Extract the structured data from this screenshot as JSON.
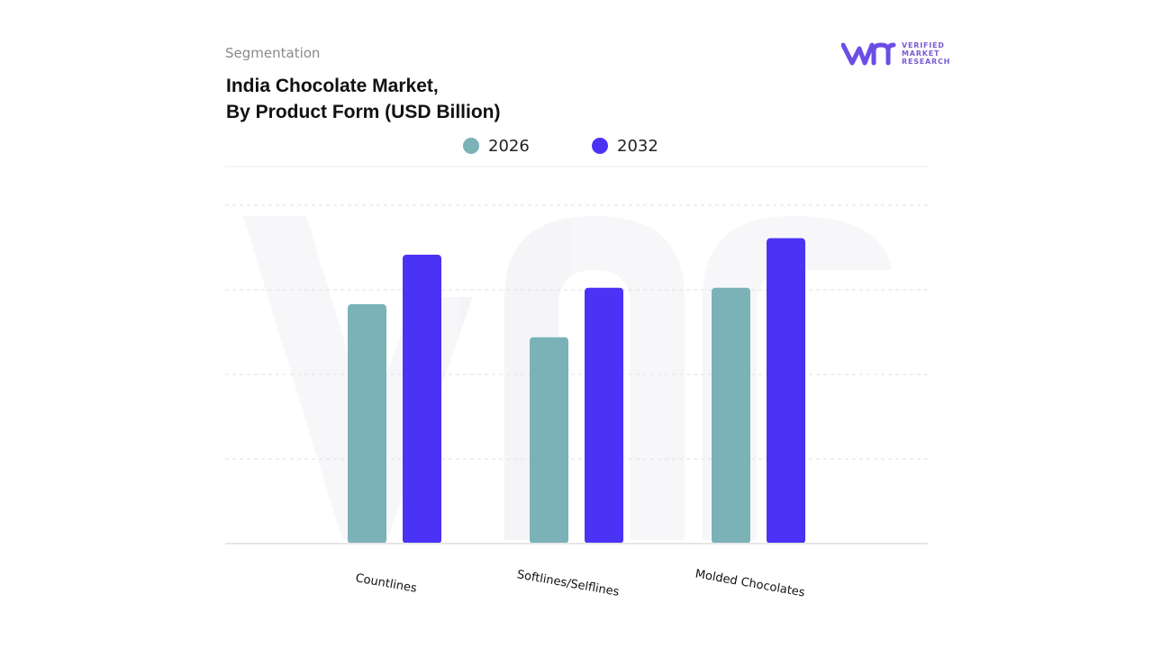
{
  "header": {
    "segment_label": "Segmentation",
    "title_line1": "India Chocolate Market,",
    "title_line2": "By Product Form (USD Billion)"
  },
  "logo": {
    "line1": "VERIFIED",
    "line2": "MARKET",
    "line3": "RESEARCH",
    "icon": "vmr-logo-icon"
  },
  "colors": {
    "series_2026": "#7ab2b8",
    "series_2032": "#4b33f5",
    "logo": "#6c4de6"
  },
  "chart_data": {
    "type": "bar",
    "title": "India Chocolate Market, By Product Form (USD Billion)",
    "xlabel": "",
    "ylabel": "",
    "categories": [
      "Countlines",
      "Softlines/Selflines",
      "Molded Chocolates"
    ],
    "series": [
      {
        "name": "2026",
        "values": [
          2.9,
          2.5,
          3.1
        ]
      },
      {
        "name": "2032",
        "values": [
          3.5,
          3.1,
          3.7
        ]
      }
    ],
    "ylim": [
      0,
      4.1
    ],
    "grid": true,
    "legend": "top-center"
  }
}
